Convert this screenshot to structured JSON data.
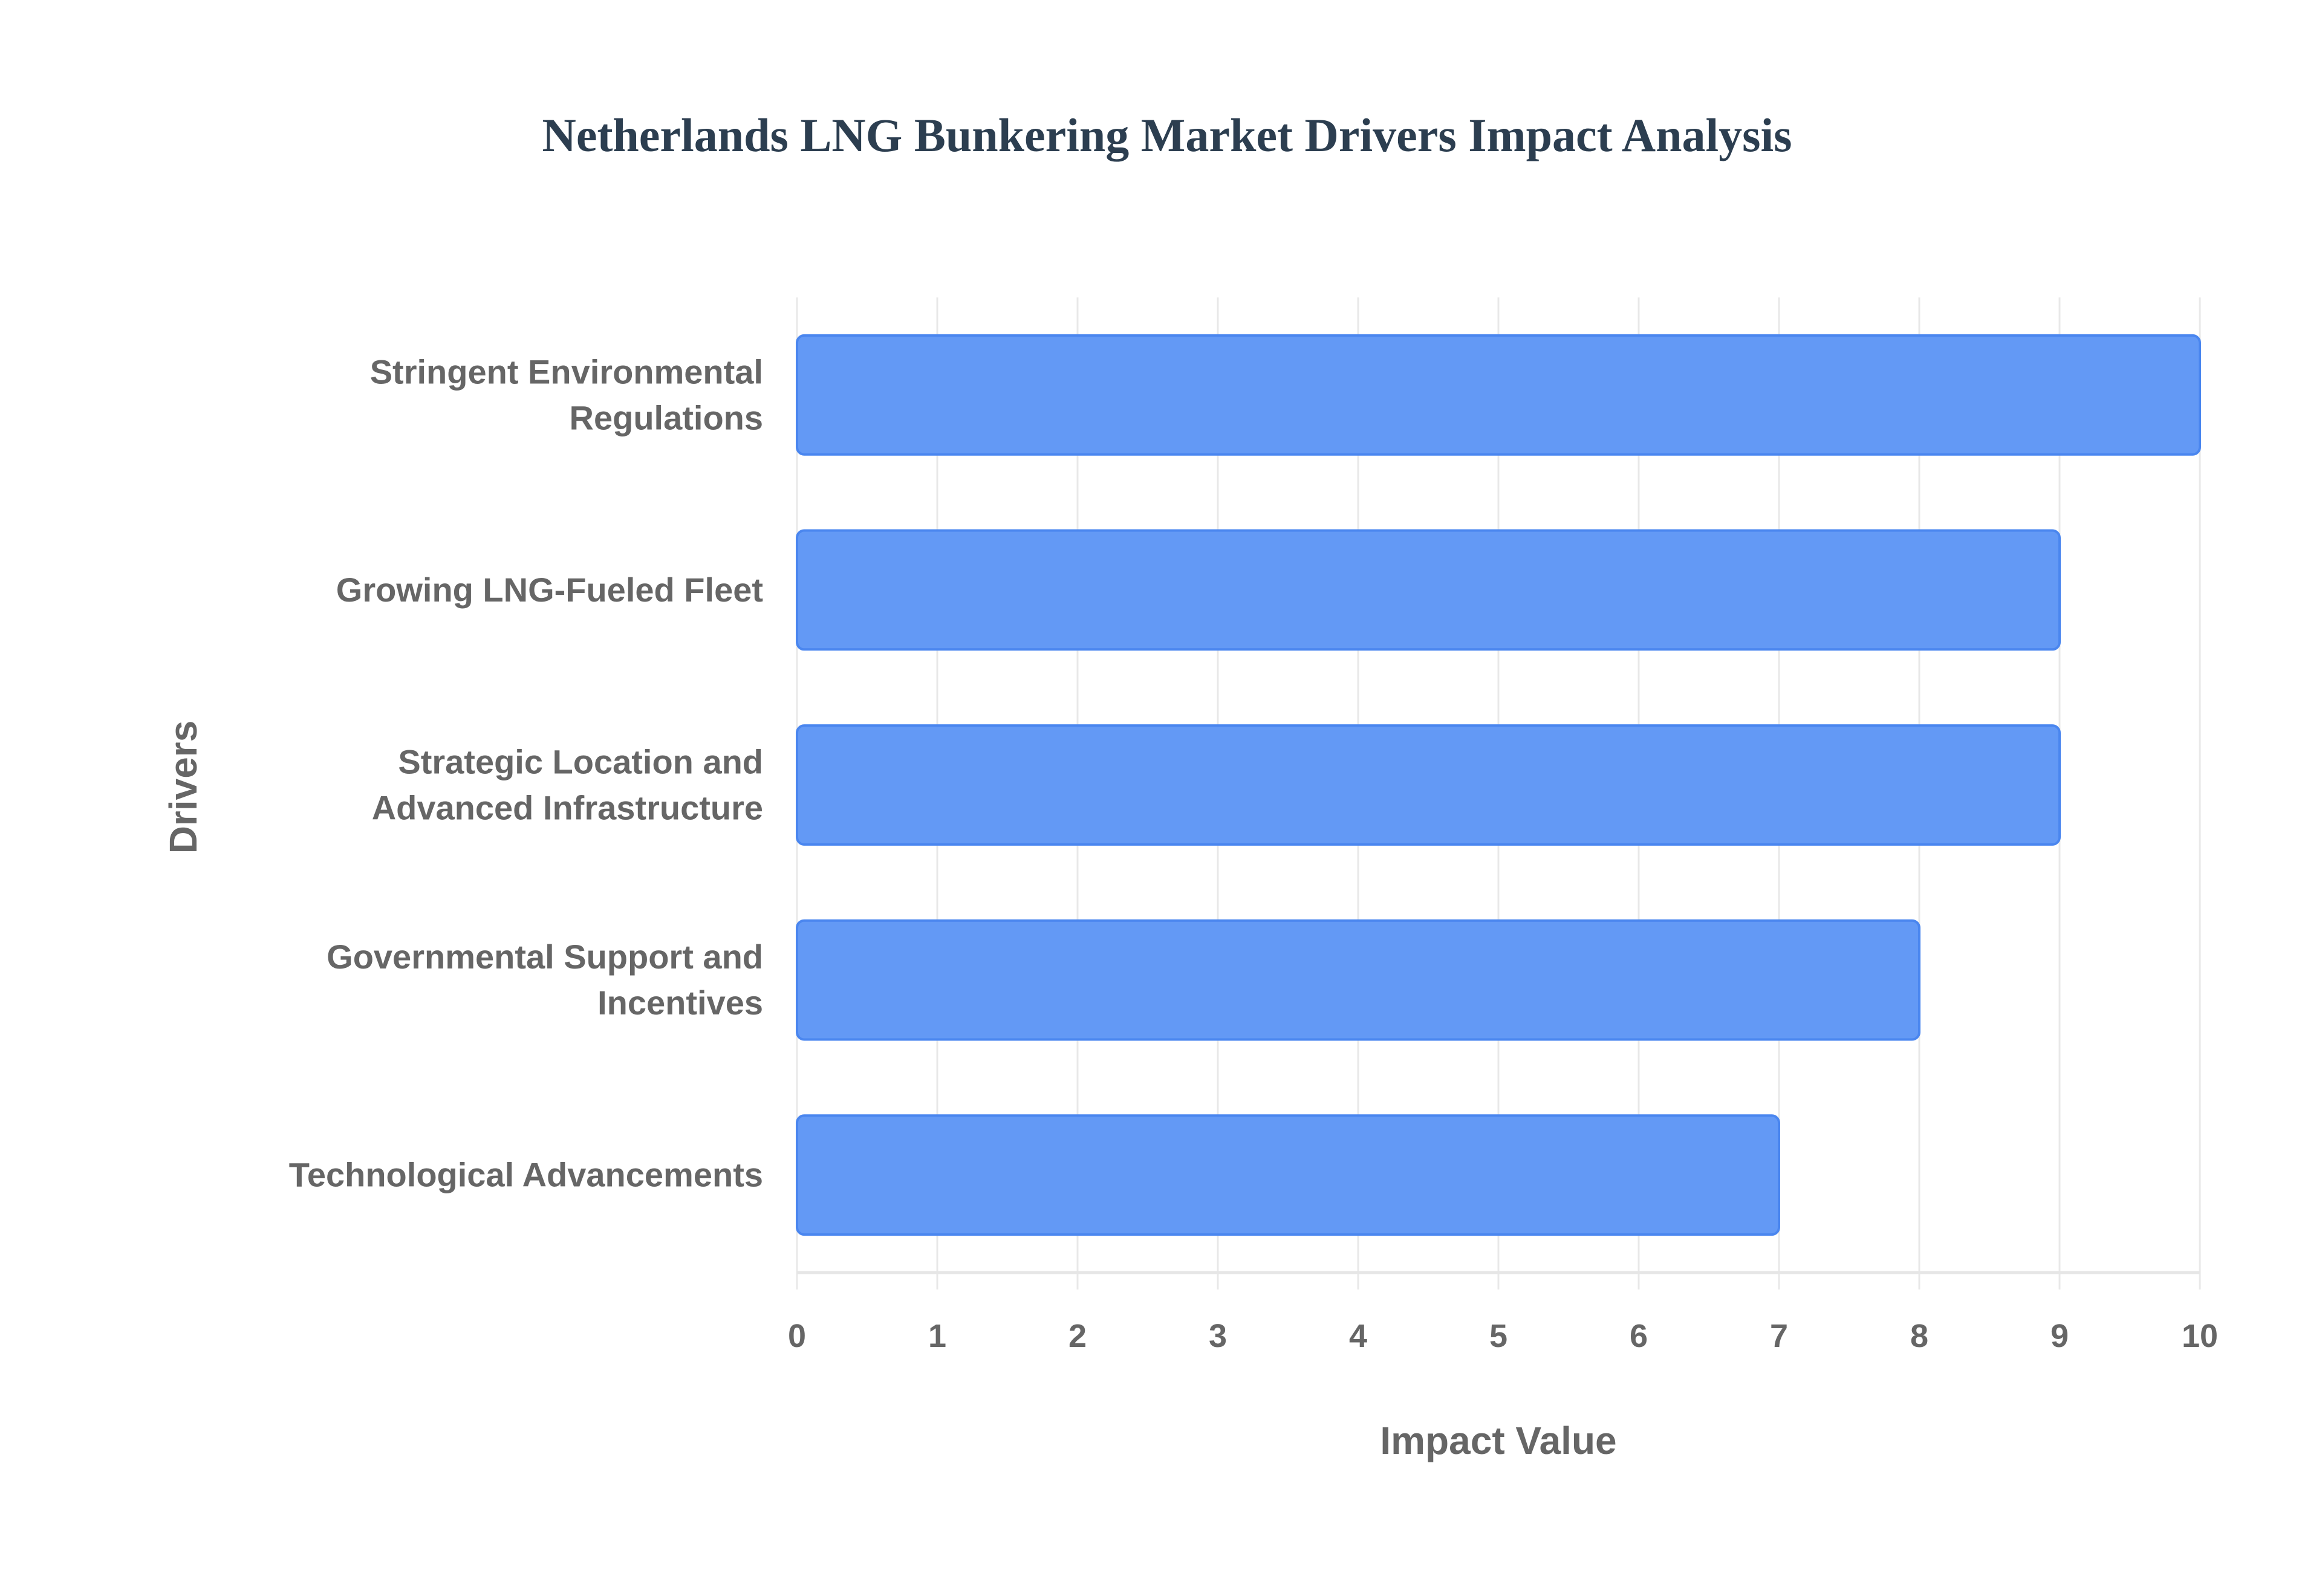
{
  "chart_data": {
    "type": "bar",
    "orientation": "horizontal",
    "title": "Netherlands LNG Bunkering Market Drivers Impact Analysis",
    "xlabel": "Impact Value",
    "ylabel": "Drivers",
    "categories": [
      [
        "Stringent Environmental",
        "Regulations"
      ],
      [
        "Growing LNG-Fueled Fleet"
      ],
      [
        "Strategic Location and",
        "Advanced Infrastructure"
      ],
      [
        "Governmental Support and",
        "Incentives"
      ],
      [
        "Technological Advancements"
      ]
    ],
    "values": [
      10,
      9,
      9,
      8,
      7
    ],
    "xlim": [
      0,
      10
    ],
    "xticks": [
      "0",
      "1",
      "2",
      "3",
      "4",
      "5",
      "6",
      "7",
      "8",
      "9",
      "10"
    ],
    "grid": true,
    "colors": {
      "bar": "#6399f5",
      "bar_border": "#4a86ef",
      "grid": "#e8e8e8",
      "text": "#666666",
      "title": "#2c3e50"
    }
  }
}
